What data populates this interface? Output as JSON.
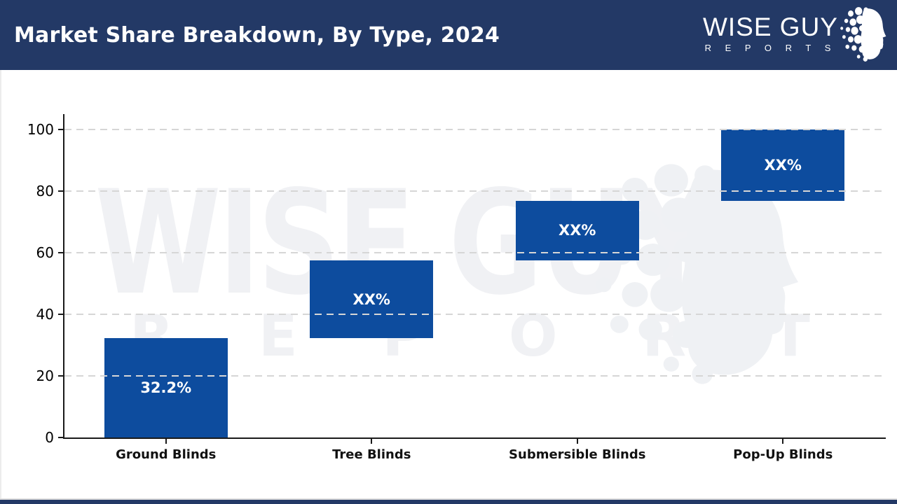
{
  "header": {
    "title": "Market Share Breakdown, By Type, 2024",
    "bg_color": "#233966",
    "brand": {
      "line1": "WISE GUY",
      "line2": "R E P O R T S"
    }
  },
  "watermark": {
    "line1": "WISE GUY",
    "line2": "R E P O R T S"
  },
  "chart_data": {
    "type": "bar",
    "variant": "floating-waterfall",
    "title": "Market Share Breakdown, By Type, 2024",
    "categories": [
      "Ground Blinds",
      "Tree Blinds",
      "Submersible Blinds",
      "Pop-Up Blinds"
    ],
    "bars": [
      {
        "category": "Ground Blinds",
        "start": 0,
        "end": 32.2,
        "label": "32.2%"
      },
      {
        "category": "Tree Blinds",
        "start": 32.2,
        "end": 57.5,
        "label": "XX%"
      },
      {
        "category": "Submersible Blinds",
        "start": 57.5,
        "end": 76.9,
        "label": "XX%"
      },
      {
        "category": "Pop-Up Blinds",
        "start": 76.9,
        "end": 100,
        "label": "XX%"
      }
    ],
    "ylabel": "",
    "xlabel": "",
    "yticks": [
      0,
      20,
      40,
      60,
      80,
      100
    ],
    "ylim": [
      0,
      105
    ],
    "grid": {
      "horizontal": true,
      "style": "dashed",
      "above_bars": true
    },
    "legend": "none",
    "bar_color": "#0d4c9e",
    "bar_label_color": "#ffffff",
    "axis_color": "#1a1a1a",
    "grid_color": "#d6d6d6"
  }
}
